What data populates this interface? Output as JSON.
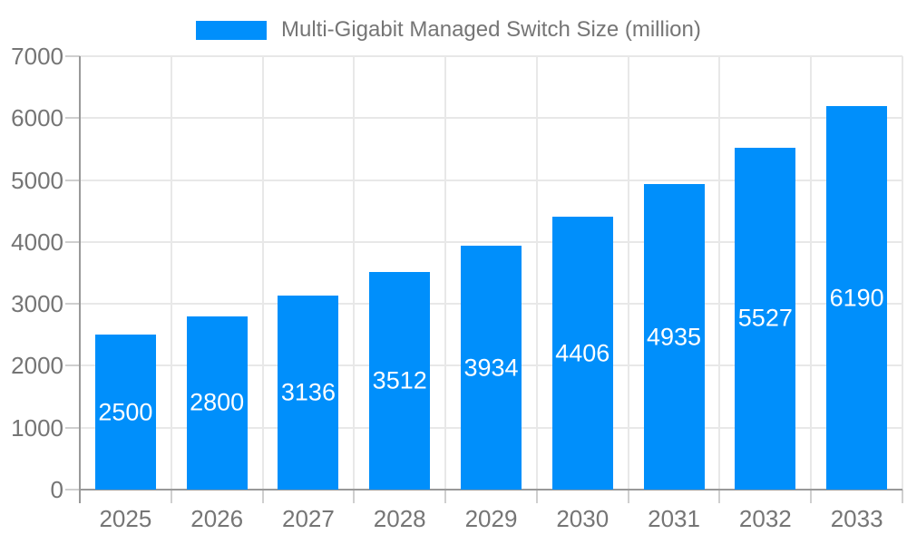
{
  "legend": {
    "label": "Multi-Gigabit Managed Switch Size (million)"
  },
  "chart_data": {
    "type": "bar",
    "title": "Multi-Gigabit Managed Switch Size (million)",
    "series_name": "Multi-Gigabit Managed Switch Size (million)",
    "categories": [
      "2025",
      "2026",
      "2027",
      "2028",
      "2029",
      "2030",
      "2031",
      "2032",
      "2033"
    ],
    "values": [
      2500,
      2800,
      3136,
      3512,
      3934,
      4406,
      4935,
      5527,
      6190
    ],
    "xlabel": "",
    "ylabel": "",
    "ylim": [
      0,
      7000
    ],
    "ytick_step": 1000,
    "ytick_labels": [
      "0",
      "1000",
      "2000",
      "3000",
      "4000",
      "5000",
      "6000",
      "7000"
    ],
    "grid": true,
    "legend_position": "top-center",
    "bar_labels_inside": true,
    "colors": {
      "bar": "#008FFB",
      "bar_label_text": "#FFFFFF",
      "axis_text": "#757575",
      "legend_text": "#757575",
      "grid": "#E8E8E8",
      "axis_line": "#999999",
      "tick_line": "#CFCFCF",
      "background": "#FFFFFF"
    }
  }
}
